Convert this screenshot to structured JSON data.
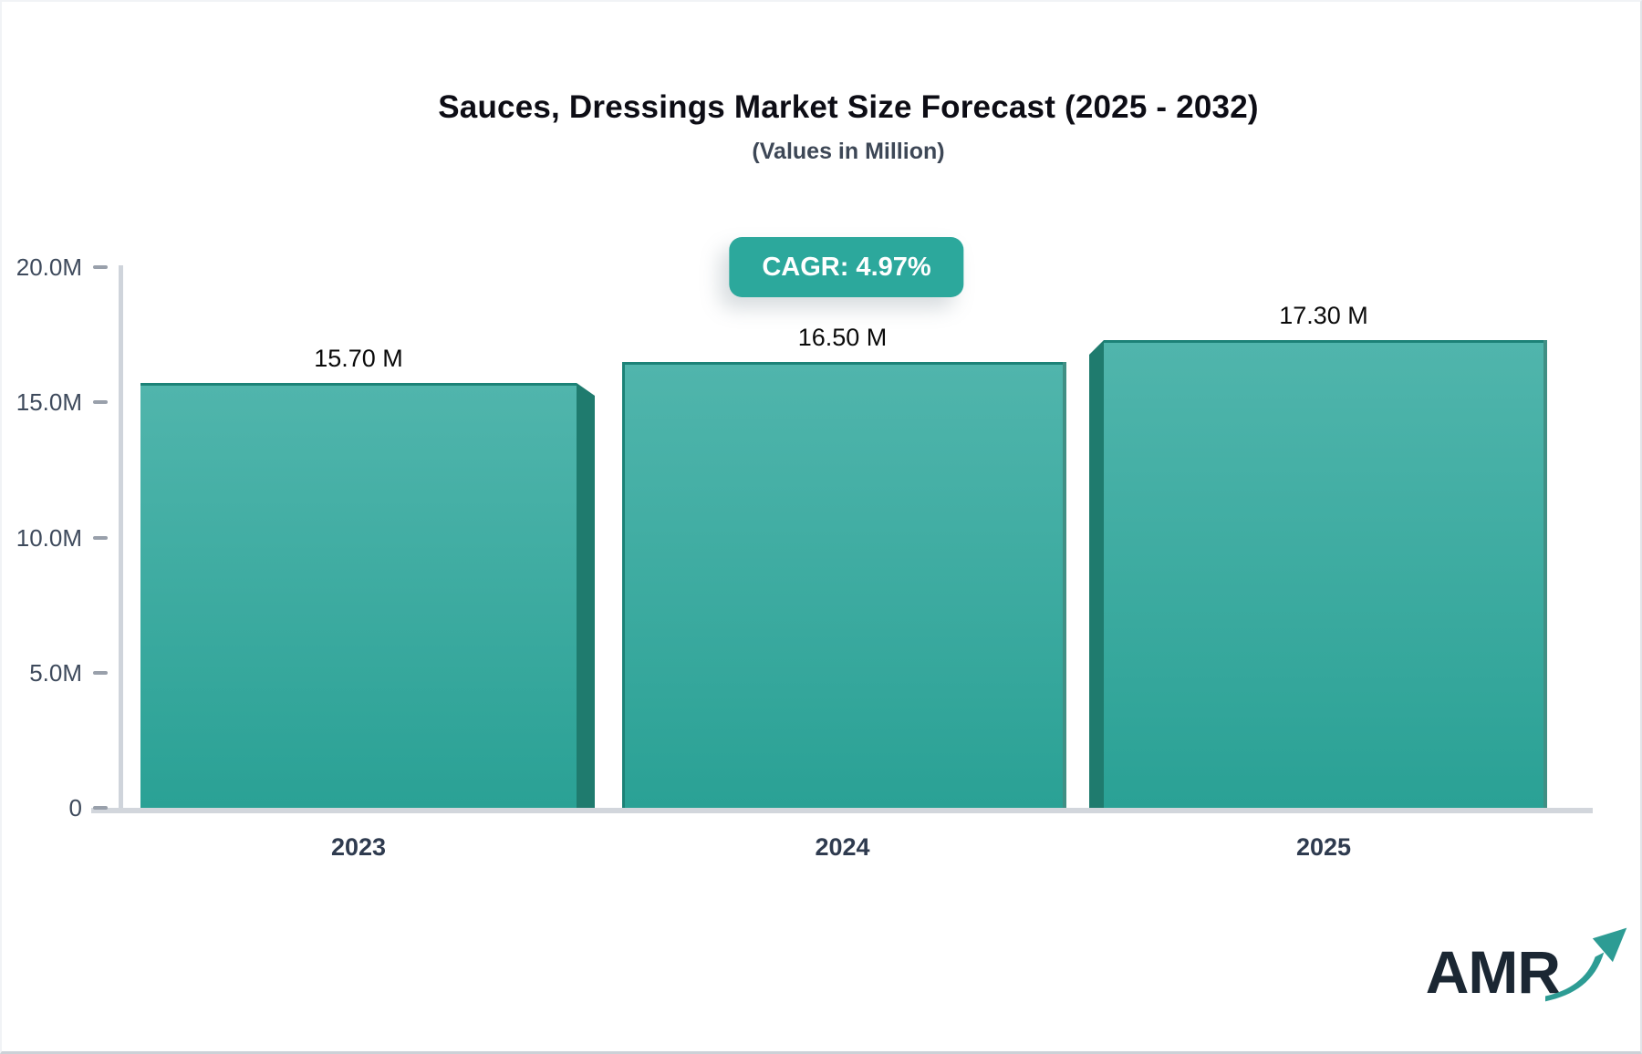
{
  "header": {
    "title": "Sauces, Dressings Market Size Forecast (2025 - 2032)",
    "subtitle": "(Values in Million)"
  },
  "badge": {
    "label": "CAGR: 4.97%"
  },
  "logo": {
    "text": "AMR",
    "arrow_icon": "trend-up-arrow-icon"
  },
  "colors": {
    "bar_fill_top": "#50b5ac",
    "bar_fill_bottom": "#2aa195",
    "bar_edge_dark": "#1f7b6e",
    "bar_top_border": "#1c8277",
    "badge_bg": "#2ca89c",
    "axis_line": "#cfd4db",
    "tick": "#99a0ab",
    "y_label": "#3e4a5c",
    "x_label": "#2f3b4f",
    "title": "#0d0d15",
    "subtitle": "#3d4756",
    "value_label": "#0a0a0a",
    "logo_text": "#1b2733",
    "logo_arrow": "#2d9c94"
  },
  "chart_data": {
    "type": "bar",
    "title": "Sauces, Dressings Market Size Forecast (2025 - 2032)",
    "subtitle": "(Values in Million)",
    "annotation": "CAGR: 4.97%",
    "unit": "Million",
    "categories": [
      "2023",
      "2024",
      "2025"
    ],
    "values": [
      15.7,
      16.5,
      17.3
    ],
    "value_labels": [
      "15.70 M",
      "16.50 M",
      "17.30 M"
    ],
    "ylim": [
      0,
      20
    ],
    "yticks": [
      {
        "value": 20,
        "label": "20.0M"
      },
      {
        "value": 15,
        "label": "15.0M"
      },
      {
        "value": 10,
        "label": "10.0M"
      },
      {
        "value": 5,
        "label": "5.0M"
      },
      {
        "value": 0,
        "label": "0"
      }
    ],
    "xlabel": "",
    "ylabel": "",
    "grid": false,
    "legend": false
  }
}
